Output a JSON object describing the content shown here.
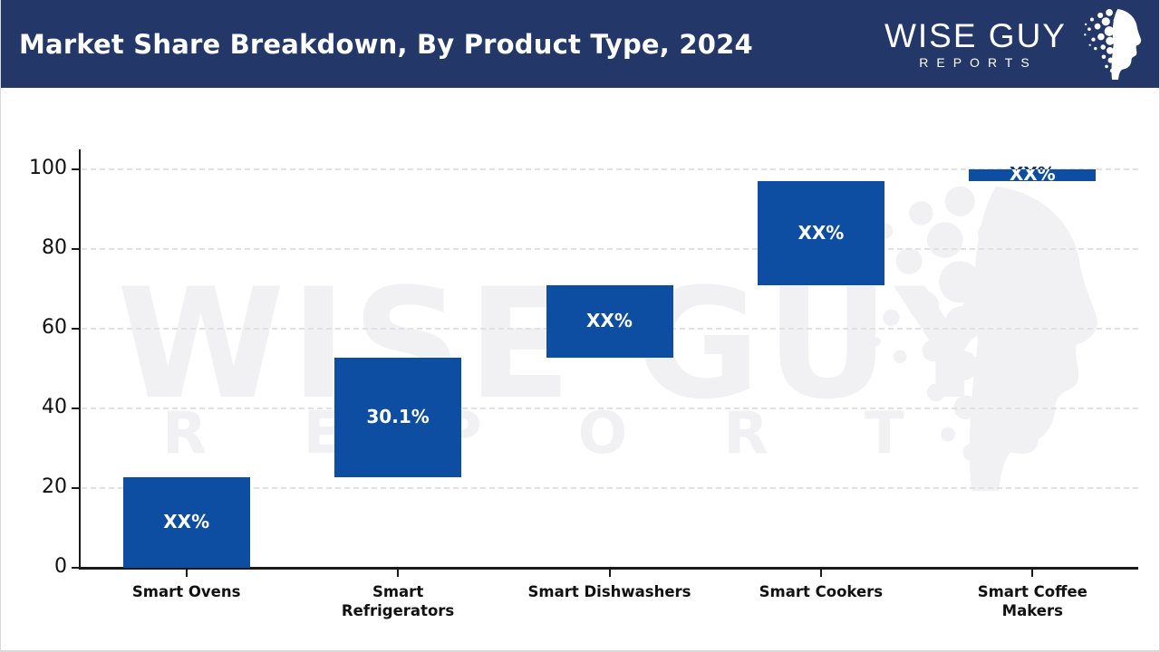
{
  "header": {
    "title": "Market Share Breakdown, By Product Type, 2024",
    "bg_color": "#233868",
    "logo": {
      "line1": "WISE GUY",
      "line2": "REPORTS"
    }
  },
  "watermark": {
    "line1": "WISE GUY",
    "line2": "R E P O R T S"
  },
  "chart_data": {
    "type": "bar",
    "subtype": "waterfall",
    "title": "Market Share Breakdown, By Product Type, 2024",
    "categories": [
      "Smart Ovens",
      "Smart\nRefrigerators",
      "Smart Dishwashers",
      "Smart Cookers",
      "Smart Coffee\nMakers"
    ],
    "segments": [
      {
        "label": "Smart Ovens",
        "start": 0,
        "end": 22.7,
        "value_label": "XX%"
      },
      {
        "label": "Smart Refrigerators",
        "start": 22.7,
        "end": 52.8,
        "value_label": "30.1%"
      },
      {
        "label": "Smart Dishwashers",
        "start": 52.8,
        "end": 70.8,
        "value_label": "XX%"
      },
      {
        "label": "Smart Cookers",
        "start": 70.8,
        "end": 97.1,
        "value_label": "XX%"
      },
      {
        "label": "Smart Coffee Makers",
        "start": 97.1,
        "end": 100,
        "value_label": "XX%"
      }
    ],
    "yticks": [
      0,
      20,
      40,
      60,
      80,
      100
    ],
    "ylim": [
      0,
      105
    ],
    "xlabel": "",
    "ylabel": "",
    "legend": "none",
    "grid": "horizontal-dashed",
    "bar_color": "#0D4DA2",
    "overflow_label_color": "#17386B",
    "axis_color": "#1a1a1a",
    "gridline_color": "#e1e1e1"
  }
}
